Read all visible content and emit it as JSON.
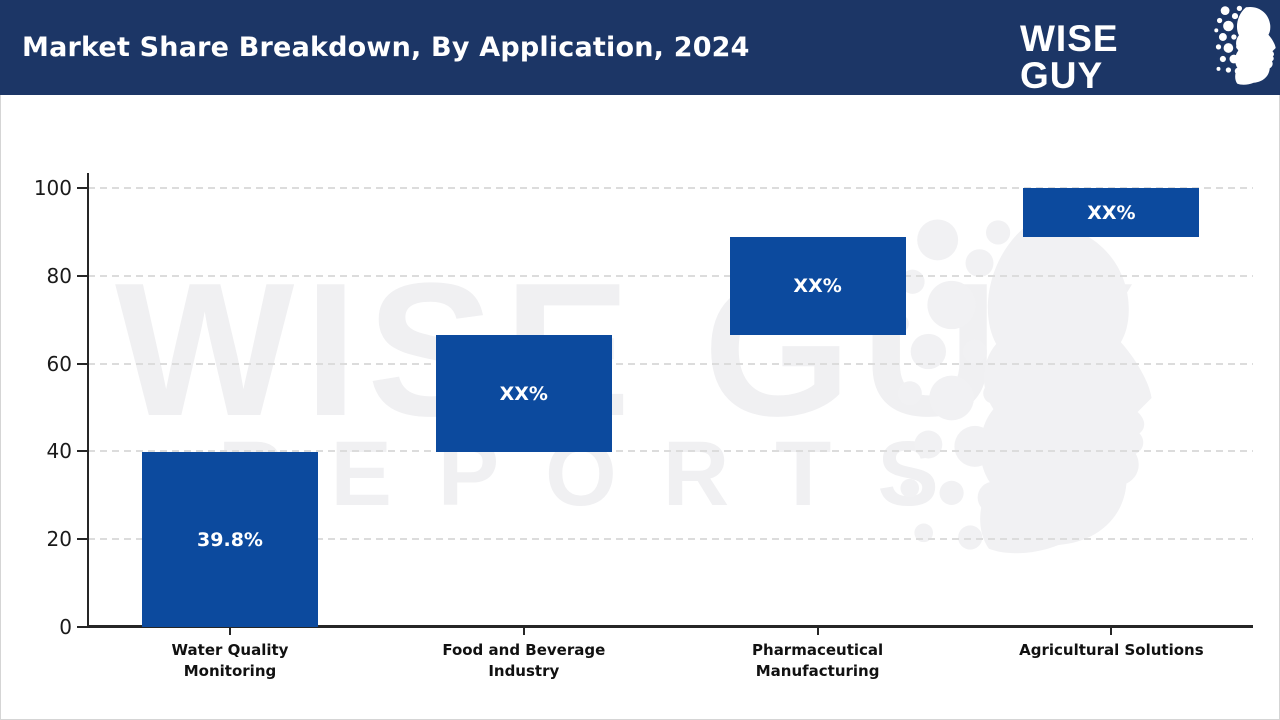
{
  "header": {
    "title": "Market Share Breakdown, By Application, 2024",
    "bg_color": "#1c3666",
    "logo": {
      "line1": "WISE GUY",
      "line2": "REPORTS"
    }
  },
  "watermark": {
    "line1": "WISE GUY",
    "line2": "REPORTS",
    "color": "#f0f0f2"
  },
  "chart_data": {
    "type": "bar",
    "subtype": "waterfall",
    "title": "Market Share Breakdown, By Application, 2024",
    "categories": [
      "Water Quality Monitoring",
      "Food and Beverage Industry",
      "Pharmaceutical Manufacturing",
      "Agricultural Solutions"
    ],
    "segments": [
      {
        "category": "Water Quality Monitoring",
        "start": 0,
        "end": 39.8,
        "label": "39.8%"
      },
      {
        "category": "Food and Beverage Industry",
        "start": 39.8,
        "end": 66.5,
        "label": "XX%"
      },
      {
        "category": "Pharmaceutical Manufacturing",
        "start": 66.5,
        "end": 88.8,
        "label": "XX%"
      },
      {
        "category": "Agricultural Solutions",
        "start": 88.8,
        "end": 100,
        "label": "XX%"
      }
    ],
    "y_ticks": [
      0,
      20,
      40,
      60,
      80,
      100
    ],
    "ylim": [
      0,
      103.5
    ],
    "xlabel": "",
    "ylabel": "",
    "grid": "horizontal-dashed",
    "legend": "none",
    "bar_color": "#0c4a9e",
    "grid_color": "#dcdcdc",
    "axis_color": "#262626",
    "label_color_on_bar": "#ffffff"
  }
}
